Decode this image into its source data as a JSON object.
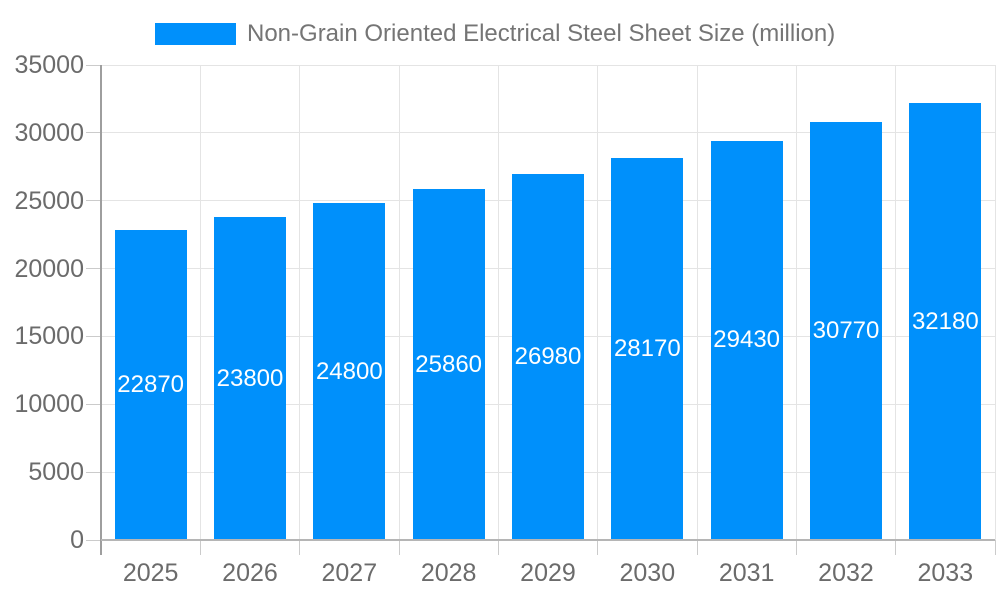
{
  "chart_data": {
    "type": "bar",
    "title": "Non-Grain Oriented Electrical Steel Sheet Size (million)",
    "legend_position": "top",
    "categories": [
      "2025",
      "2026",
      "2027",
      "2028",
      "2029",
      "2030",
      "2031",
      "2032",
      "2033"
    ],
    "series": [
      {
        "name": "Non-Grain Oriented Electrical Steel Sheet Size (million)",
        "values": [
          22870,
          23800,
          24800,
          25860,
          26980,
          28170,
          29430,
          30770,
          32180
        ]
      }
    ],
    "xlabel": "",
    "ylabel": "",
    "ylim": [
      0,
      35000
    ],
    "yticks": [
      0,
      5000,
      10000,
      15000,
      20000,
      25000,
      30000,
      35000
    ],
    "grid": "both",
    "value_labels_position": "center-of-bar",
    "colors": {
      "bar": "#0090FB",
      "value_label": "#FFFFFF",
      "axis_text": "#6B6B6B",
      "legend_text": "#757575",
      "gridline": "#E4E4E4",
      "axis_line": "#9E9E9E",
      "bottom_axis_line": "#B5B5B5",
      "tick": "#CBCBCB",
      "background": "#FFFFFF"
    }
  }
}
